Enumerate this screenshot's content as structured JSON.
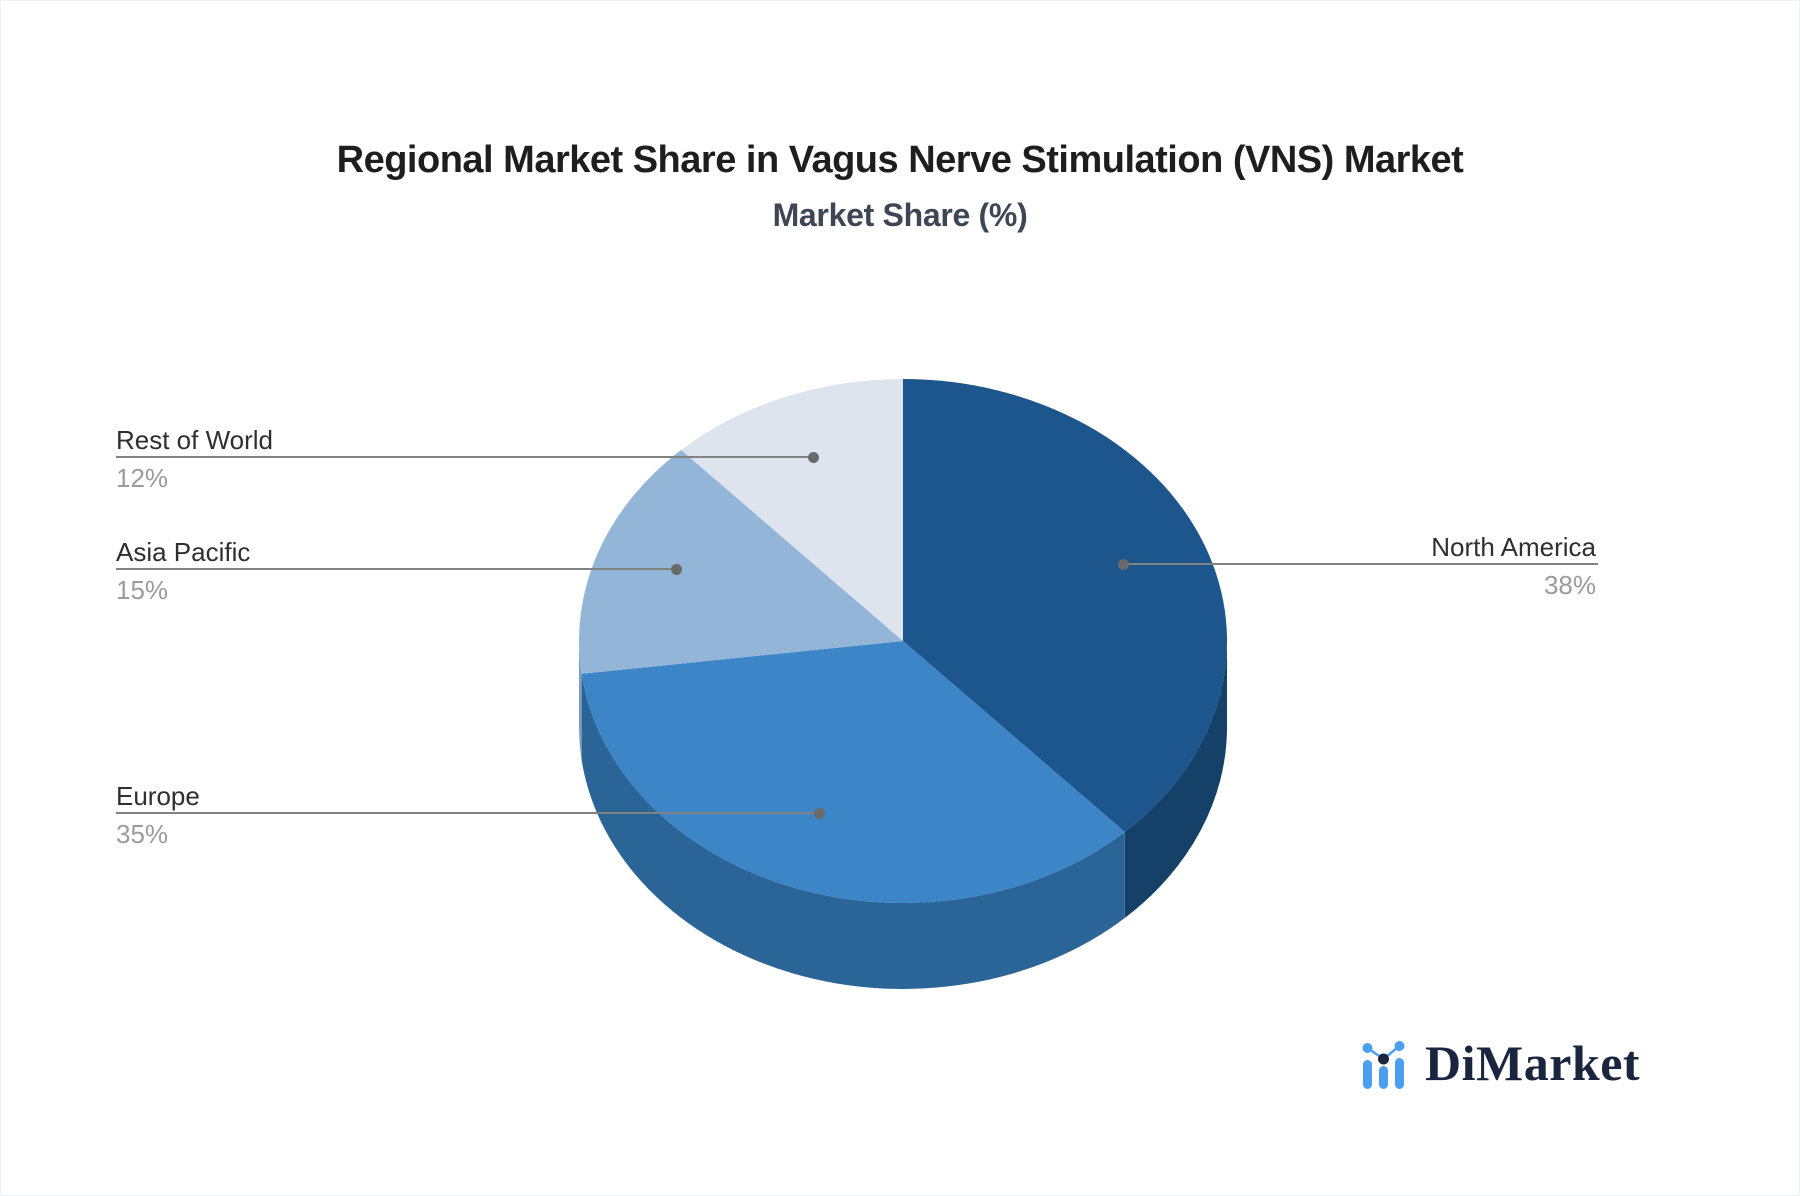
{
  "chart_data": {
    "type": "pie",
    "style": "3d-pie",
    "title": "Regional Market Share in Vagus Nerve Stimulation (VNS) Market",
    "subtitle": "Market Share (%)",
    "unit": "%",
    "direction": "clockwise",
    "start_angle_deg": 0,
    "legend_position": "callout-labels",
    "categories": [
      "North America",
      "Europe",
      "Asia Pacific",
      "Rest of World"
    ],
    "values": [
      38,
      35,
      15,
      12
    ],
    "slices": [
      {
        "label": "North America",
        "value": 38,
        "pct_text": "38%",
        "color": "#1c568d",
        "side_color": "#154067"
      },
      {
        "label": "Europe",
        "value": 35,
        "pct_text": "35%",
        "color": "#3c86c7",
        "side_color": "#2b6496"
      },
      {
        "label": "Asia Pacific",
        "value": 15,
        "pct_text": "15%",
        "color": "#93b5d8",
        "side_color": "#7e9dc2"
      },
      {
        "label": "Rest of World",
        "value": 12,
        "pct_text": "12%",
        "color": "#dde4ed",
        "side_color": "#c3cede"
      }
    ]
  },
  "branding": {
    "name": "DiMarket",
    "icon": "bar-chart-logo-icon",
    "text_color": "#1a2540",
    "accent_color": "#4a9ff0"
  },
  "callout_colors": {
    "line": "#828282",
    "dot": "#6a6a6a",
    "label_text": "#2f2f2f",
    "pct_text": "#9b9b9b"
  }
}
